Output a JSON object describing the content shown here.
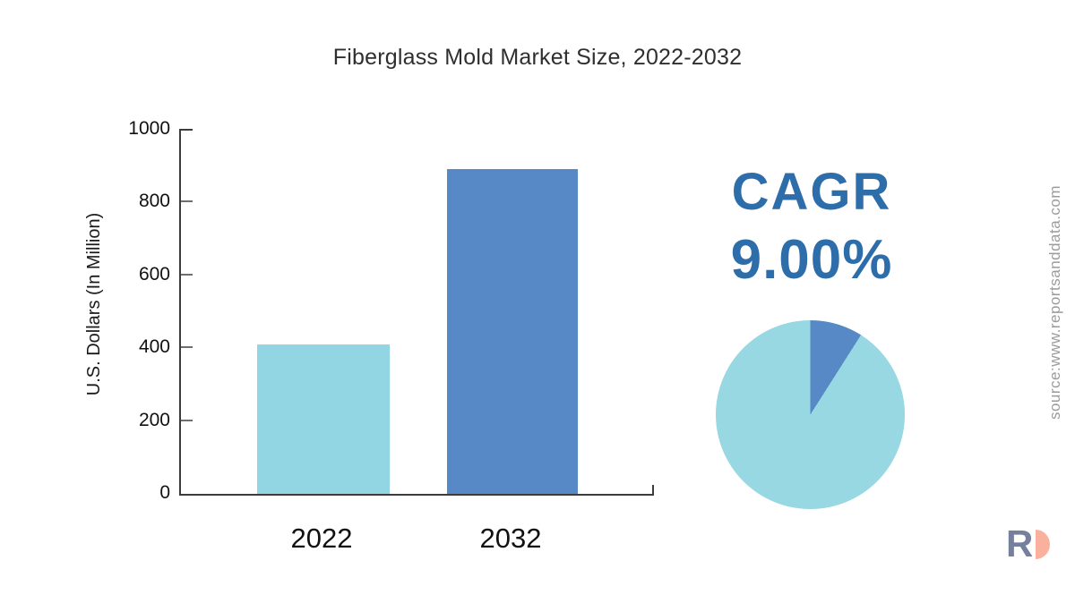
{
  "chart_data": {
    "type": "bar",
    "title": "Fiberglass Mold Market Size, 2022-2032",
    "categories": [
      "2022",
      "2032"
    ],
    "values": [
      410,
      890
    ],
    "xlabel": "",
    "ylabel": "U.S. Dollars (In Million)",
    "ylim": [
      0,
      1000
    ],
    "yticks": [
      0,
      200,
      400,
      600,
      800,
      1000
    ],
    "grid": false,
    "legend": false,
    "bar_colors": [
      "#93d6e3",
      "#5689c6"
    ]
  },
  "cagr": {
    "label": "CAGR",
    "value": "9.00%",
    "color": "#2d6da9",
    "pie": {
      "slice_pct": 9,
      "slice_color": "#5689c6",
      "base_color": "#97d8e2"
    }
  },
  "source": {
    "text": "source:www.reportsanddata.com"
  },
  "logo": {
    "letter": "R",
    "letter_color": "#75809c",
    "shape": "d-semicircle",
    "shape_color": "#f9b19e"
  }
}
